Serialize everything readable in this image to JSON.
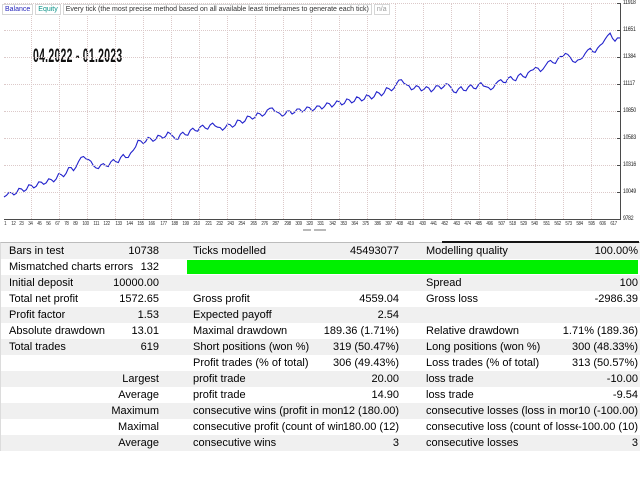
{
  "legend": {
    "balance_label": "Balance",
    "equity_label": "Equity",
    "model_text": "Every tick (the most precise method based on all available least timeframes to generate each tick)",
    "na_label": "n/a"
  },
  "chart_data": {
    "type": "line",
    "title": "04.2022 - 01.2023",
    "ylim": [
      9782,
      11918
    ],
    "grid": "dotted",
    "legend_position": "top-left",
    "y_ticks": [
      11918,
      11651,
      11384,
      11117,
      10850,
      10583,
      10316,
      10049,
      9782
    ],
    "x_ticks": [
      1,
      12,
      23,
      34,
      45,
      56,
      67,
      78,
      89,
      100,
      111,
      122,
      133,
      144,
      155,
      166,
      177,
      188,
      199,
      210,
      221,
      232,
      243,
      254,
      265,
      276,
      287,
      298,
      309,
      320,
      331,
      342,
      353,
      364,
      375,
      386,
      397,
      408,
      419,
      430,
      441,
      452,
      463,
      474,
      485,
      496,
      507,
      518,
      529,
      540,
      551,
      562,
      573,
      584,
      595,
      606,
      617
    ],
    "series": [
      {
        "name": "Balance",
        "color": "#2222cc",
        "x_start": 0,
        "x_step": 5,
        "values": [
          10000,
          10045,
          10020,
          10085,
          10055,
          10120,
          10090,
          10150,
          10125,
          10180,
          10150,
          10230,
          10200,
          10290,
          10260,
          10350,
          10400,
          10370,
          10310,
          10280,
          10330,
          10300,
          10370,
          10340,
          10420,
          10390,
          10460,
          10560,
          10530,
          10590,
          10550,
          10610,
          10580,
          10640,
          10600,
          10570,
          10640,
          10610,
          10680,
          10650,
          10710,
          10670,
          10730,
          10690,
          10660,
          10720,
          10690,
          10760,
          10730,
          10800,
          10770,
          10830,
          10800,
          10860,
          10880,
          10840,
          10800,
          10850,
          10820,
          10870,
          10840,
          10890,
          10850,
          10900,
          10870,
          10930,
          10890,
          10950,
          10910,
          10970,
          10930,
          10990,
          10950,
          11010,
          10970,
          11040,
          11000,
          11080,
          11050,
          11120,
          11160,
          11110,
          11060,
          11100,
          11050,
          11090,
          11040,
          11100,
          11070,
          11120,
          11080,
          11030,
          11090,
          11050,
          11110,
          11070,
          11130,
          11090,
          11060,
          11120,
          11160,
          11130,
          11190,
          11150,
          11220,
          11180,
          11250,
          11280,
          11240,
          11300,
          11350,
          11320,
          11390,
          11420,
          11380,
          11330,
          11360,
          11420,
          11470,
          11430,
          11500,
          11560,
          11620,
          11540,
          11573
        ]
      }
    ]
  },
  "report_table": {
    "rows": [
      {
        "l1": "Bars in test",
        "v1": "10738",
        "l2": "Ticks modelled",
        "v2": "45493077",
        "l3": "Modelling quality",
        "v3": "100.00%"
      },
      {
        "l1": "Mismatched charts errors",
        "v1": "132",
        "bar": true
      },
      {
        "l1": "Initial deposit",
        "v1": "10000.00",
        "l2": "",
        "v2": "",
        "l3": "Spread",
        "v3": "100"
      },
      {
        "l1": "Total net profit",
        "v1": "1572.65",
        "l2": "Gross profit",
        "v2": "4559.04",
        "l3": "Gross loss",
        "v3": "-2986.39"
      },
      {
        "l1": "Profit factor",
        "v1": "1.53",
        "l2": "Expected payoff",
        "v2": "2.54",
        "l3": "",
        "v3": ""
      },
      {
        "l1": "Absolute drawdown",
        "v1": "13.01",
        "l2": "Maximal drawdown",
        "v2": "189.36 (1.71%)",
        "l3": "Relative drawdown",
        "v3": "1.71% (189.36)"
      },
      {
        "l1": "Total trades",
        "v1": "619",
        "l2": "Short positions (won %)",
        "v2": "319 (50.47%)",
        "l3": "Long positions (won %)",
        "v3": "300 (48.33%)"
      },
      {
        "l1": "",
        "v1": "",
        "l2": "Profit trades (% of total)",
        "v2": "306 (49.43%)",
        "l3": "Loss trades (% of total)",
        "v3": "313 (50.57%)"
      },
      {
        "l1": "",
        "v1": "Largest",
        "l2": "profit trade",
        "v2": "20.00",
        "l3": "loss trade",
        "v3": "-10.00"
      },
      {
        "l1": "",
        "v1": "Average",
        "l2": "profit trade",
        "v2": "14.90",
        "l3": "loss trade",
        "v3": "-9.54"
      },
      {
        "l1": "",
        "v1": "Maximum",
        "l2": "consecutive wins (profit in money)",
        "v2": "12 (180.00)",
        "l3": "consecutive losses (loss in money)",
        "v3": "10 (-100.00)"
      },
      {
        "l1": "",
        "v1": "Maximal",
        "l2": "consecutive profit (count of wins)",
        "v2": "180.00 (12)",
        "l3": "consecutive loss (count of losses)",
        "v3": "-100.00 (10)"
      },
      {
        "l1": "",
        "v1": "Average",
        "l2": "consecutive wins",
        "v2": "3",
        "l3": "consecutive losses",
        "v3": "3"
      }
    ]
  },
  "colors": {
    "balance_line": "#2222cc",
    "quality_bar_green": "#00f000",
    "grid_dotted": "#dcc9c9"
  }
}
